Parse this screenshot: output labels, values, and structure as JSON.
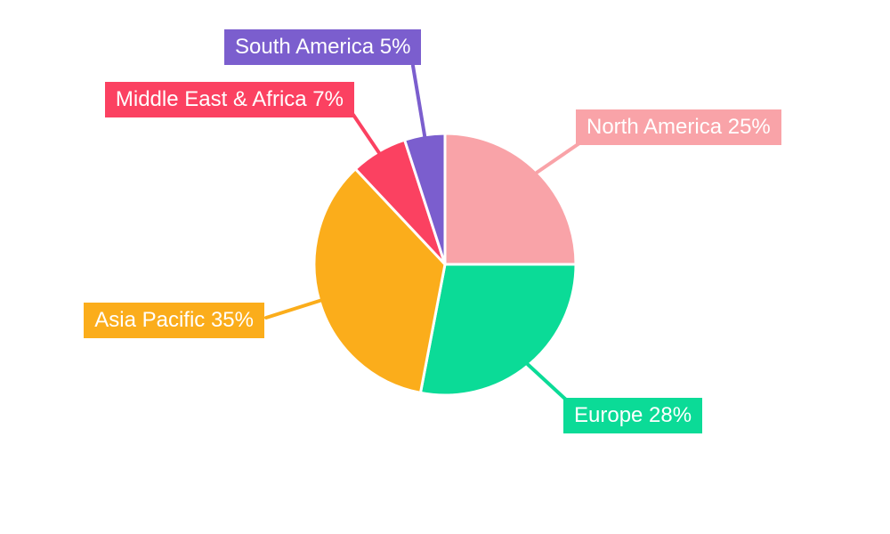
{
  "page": {
    "background": "#ffffff"
  },
  "chart_data": {
    "type": "pie",
    "title": "",
    "legend": "none",
    "label_style": "outside-callout",
    "unit": "%",
    "categories": [
      "North America",
      "Europe",
      "Asia Pacific",
      "Middle East & Africa",
      "South America"
    ],
    "values": [
      25,
      28,
      35,
      7,
      5
    ],
    "start_angle_deg": 0,
    "direction": "clockwise",
    "slice_border_color": "#ffffff",
    "label_text_color": "#ffffff",
    "slices": [
      {
        "label": "North America",
        "value": 25,
        "display": "North America 25%",
        "color": "#F9A3A8"
      },
      {
        "label": "Europe",
        "value": 28,
        "display": "Europe 28%",
        "color": "#0BDB97"
      },
      {
        "label": "Asia Pacific",
        "value": 35,
        "display": "Asia Pacific 35%",
        "color": "#FBAD1B"
      },
      {
        "label": "Middle East & Africa",
        "value": 7,
        "display": "Middle East & Africa 7%",
        "color": "#FB4161"
      },
      {
        "label": "South America",
        "value": 5,
        "display": "South America 5%",
        "color": "#7B5ECE"
      }
    ]
  }
}
